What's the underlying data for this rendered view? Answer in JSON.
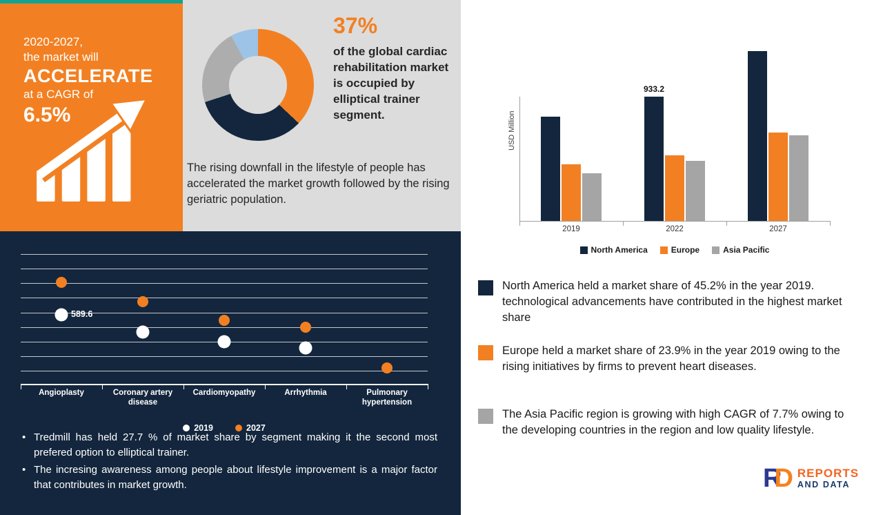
{
  "colors": {
    "orange": "#F28022",
    "navy": "#13263D",
    "panel_gray": "#DCDCDC",
    "bar_gray": "#A5A5A5",
    "donut_gray": "#ADADAD",
    "light_blue": "#9DC3E6",
    "teal": "#12A393",
    "white": "#FFFFFF"
  },
  "cagr_panel": {
    "line1": "2020-2027,",
    "line2": "the market will",
    "line3": "ACCELERATE",
    "line4": "at a CAGR of",
    "line5": "6.5%"
  },
  "segment_panel": {
    "stat_value": "37%",
    "stat_text": "of the global  cardiac rehabilitation market is occupied by elliptical trainer segment.",
    "body_text": "The rising downfall in the lifestyle of people has accelerated the market growth followed by the rising geriatric population."
  },
  "indication_panel": {
    "bullets": [
      "Tredmill has held 27.7 % of market share by segment making it the second most prefered  option to elliptical trainer.",
      "The incresing awareness among people about lifestyle  improvement is a major factor that contributes in market growth."
    ]
  },
  "regional_panel": {
    "bullets": [
      {
        "color": "#13263D",
        "text": "North America held a market share of 45.2% in the year 2019. technological advancements have contributed in the highest market share"
      },
      {
        "color": "#F28022",
        "text": "Europe held a market share of 23.9% in the year 2019 owing to the rising initiatives by firms to prevent heart diseases."
      },
      {
        "color": "#A5A5A5",
        "text": "The Asia Pacific region is growing with high CAGR of 7.7% owing to the developing countries in the region and low quality lifestyle."
      }
    ],
    "logo": {
      "mark_r": "R",
      "mark_d": "D",
      "line1": "REPORTS",
      "line2": "AND DATA"
    }
  },
  "chart_data": [
    {
      "name": "segment-share-donut",
      "type": "pie",
      "labels": [
        "Elliptical trainer",
        null,
        null,
        null
      ],
      "values": [
        37,
        33,
        22,
        8
      ],
      "colors": [
        "#F28022",
        "#13263D",
        "#ADADAD",
        "#9DC3E6"
      ],
      "title": "37% of the global cardiac rehabilitation market is occupied by elliptical trainer segment."
    },
    {
      "name": "regional-market-bars",
      "type": "bar",
      "categories": [
        "2019",
        "2022",
        "2027"
      ],
      "series": [
        {
          "name": "North America",
          "color": "#13263D",
          "values": [
            785,
            933.2,
            1275
          ]
        },
        {
          "name": "Europe",
          "color": "#F28022",
          "values": [
            425,
            495,
            665
          ]
        },
        {
          "name": "Asia Pacific",
          "color": "#A5A5A5",
          "values": [
            360,
            450,
            645
          ]
        }
      ],
      "ylabel": "USD Million",
      "ylim": [
        0,
        1350
      ],
      "legend_position": "bottom",
      "data_labels": [
        {
          "series": "North America",
          "category_index": 1,
          "text": "933.2"
        }
      ]
    },
    {
      "name": "indication-dot-plot",
      "type": "scatter",
      "categories": [
        "Angioplasty",
        "Coronary artery disease",
        "Cardiomyopathy",
        "Arrhythmia",
        "Pulmonary hypertension"
      ],
      "series": [
        {
          "name": "2019",
          "color": "#FFFFFF",
          "values": [
            589.6,
            525,
            490,
            465,
            null
          ]
        },
        {
          "name": "2027",
          "color": "#F28022",
          "values": [
            712,
            640,
            570,
            545,
            390
          ]
        }
      ],
      "ylim": [
        380,
        820
      ],
      "grid": true,
      "legend_position": "bottom",
      "data_labels": [
        {
          "series": "2019",
          "category_index": 0,
          "text": "589.6"
        }
      ]
    }
  ]
}
